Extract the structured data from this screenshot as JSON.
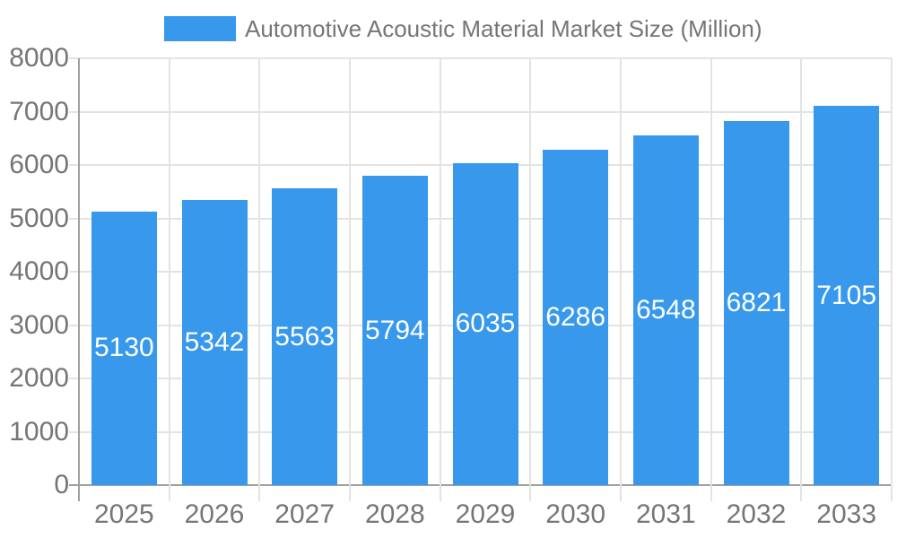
{
  "legend": {
    "label": "Automotive Acoustic Material Market Size (Million)"
  },
  "chart_data": {
    "type": "bar",
    "title": "Automotive Acoustic Material Market Size (Million)",
    "categories": [
      "2025",
      "2026",
      "2027",
      "2028",
      "2029",
      "2030",
      "2031",
      "2032",
      "2033"
    ],
    "values": [
      5130,
      5342,
      5563,
      5794,
      6035,
      6286,
      6548,
      6821,
      7105
    ],
    "series": [
      {
        "name": "Automotive Acoustic Material Market Size (Million)",
        "values": [
          5130,
          5342,
          5563,
          5794,
          6035,
          6286,
          6548,
          6821,
          7105
        ]
      }
    ],
    "xlabel": "",
    "ylabel": "",
    "ylim": [
      0,
      8000
    ],
    "yticks": [
      0,
      1000,
      2000,
      3000,
      4000,
      5000,
      6000,
      7000,
      8000
    ],
    "grid": true,
    "legend_position": "top",
    "value_labels_position": "inside-center",
    "colors": {
      "bar": "#3899ec",
      "grid": "#e3e3e3",
      "axis_line": "#a0a0a0",
      "axis_text": "#757575",
      "value_label": "#ffffff",
      "background": "#ffffff"
    }
  }
}
